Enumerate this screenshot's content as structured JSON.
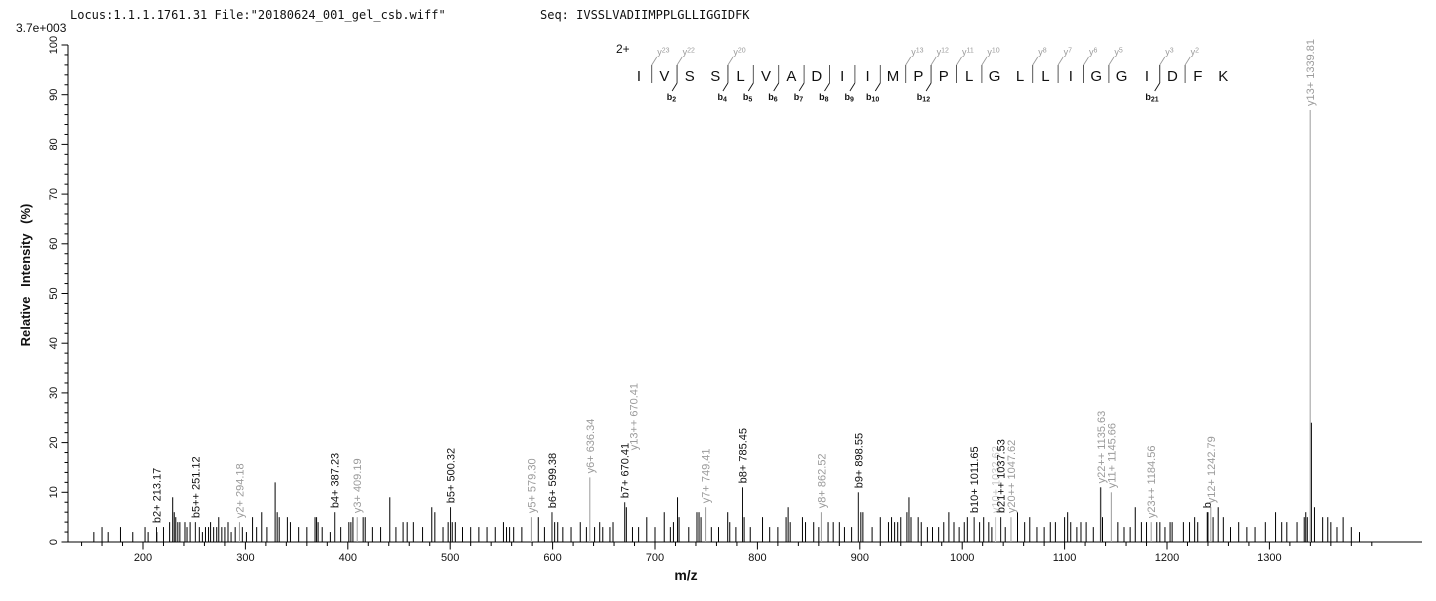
{
  "header": {
    "locus_file": "Locus:1.1.1.1761.31 File:\"20180624_001_gel_csb.wiff\"",
    "seq": "Seq: IVSSLVADIIMPPLGLLIGGIDFK"
  },
  "colors": {
    "axis": "#000000",
    "b_ion": "#111111",
    "y_ion": "#9b9b9b",
    "faint_label": "#c9c9c9",
    "noise_peak": "#000000",
    "sequence_divider": "#444444"
  },
  "chart_data": {
    "type": "bar",
    "subtype": "ms2_centroid_spectrum",
    "xlabel": "m/z",
    "ylabel": "Relative Intensity (%)",
    "intensity_scale_note": "3.7e+003",
    "xlim": [
      127,
      1449
    ],
    "ylim": [
      0,
      100
    ],
    "x_major_ticks": [
      200,
      300,
      400,
      500,
      600,
      700,
      800,
      900,
      1000,
      1100,
      1200,
      1300
    ],
    "x_minor_step": 20,
    "y_major_step": 10,
    "y_minor_step": 2,
    "grid": false,
    "precursor_charge": "2+",
    "peptide": "IVSSLVADIIMPPLGLLIGGIDFK",
    "sequence_ions": {
      "y": [
        {
          "name": "y",
          "num": "23",
          "after": 1
        },
        {
          "name": "y",
          "num": "22",
          "after": 2
        },
        {
          "name": "y",
          "num": "20",
          "after": 4
        },
        {
          "name": "y",
          "num": "13",
          "after": 11
        },
        {
          "name": "y",
          "num": "12",
          "after": 12
        },
        {
          "name": "y",
          "num": "11",
          "after": 13
        },
        {
          "name": "y",
          "num": "10",
          "after": 14
        },
        {
          "name": "y",
          "num": "8",
          "after": 16
        },
        {
          "name": "y",
          "num": "7",
          "after": 17
        },
        {
          "name": "y",
          "num": "6",
          "after": 18
        },
        {
          "name": "y",
          "num": "5",
          "after": 19
        },
        {
          "name": "y",
          "num": "3",
          "after": 21
        },
        {
          "name": "y",
          "num": "2",
          "after": 22
        }
      ],
      "b": [
        {
          "name": "b",
          "num": "2",
          "after": 2
        },
        {
          "name": "b",
          "num": "4",
          "after": 4
        },
        {
          "name": "b",
          "num": "5",
          "after": 5
        },
        {
          "name": "b",
          "num": "6",
          "after": 6
        },
        {
          "name": "b",
          "num": "7",
          "after": 7
        },
        {
          "name": "b",
          "num": "8",
          "after": 8
        },
        {
          "name": "b",
          "num": "9",
          "after": 9
        },
        {
          "name": "b",
          "num": "10",
          "after": 10
        },
        {
          "name": "b",
          "num": "12",
          "after": 12
        },
        {
          "name": "b",
          "num": "21",
          "after": 21
        }
      ]
    },
    "annotated_peaks": [
      {
        "mz": 213.17,
        "intensity_pct": 3,
        "label": "b2+ 213.17",
        "ion": "b"
      },
      {
        "mz": 251.12,
        "intensity_pct": 4,
        "label": "b5++ 251.12",
        "ion": "b"
      },
      {
        "mz": 294.18,
        "intensity_pct": 4,
        "label": "y2+ 294.18",
        "ion": "y"
      },
      {
        "mz": 387.23,
        "intensity_pct": 6,
        "label": "b4+ 387.23",
        "ion": "b"
      },
      {
        "mz": 409.19,
        "intensity_pct": 5,
        "label": "y3+ 409.19",
        "ion": "y"
      },
      {
        "mz": 500.32,
        "intensity_pct": 7,
        "label": "b5+ 500.32",
        "ion": "b"
      },
      {
        "mz": 579.3,
        "intensity_pct": 5,
        "label": "y5+ 579.30",
        "ion": "y"
      },
      {
        "mz": 599.38,
        "intensity_pct": 6,
        "label": "b6+ 599.38",
        "ion": "b"
      },
      {
        "mz": 636.34,
        "intensity_pct": 13,
        "label": "y6+ 636.34",
        "ion": "y"
      },
      {
        "mz": 670.41,
        "intensity_pct": 8,
        "label": "b7+ 670.41",
        "ion": "b"
      },
      {
        "mz": 670.41,
        "intensity_pct": 8,
        "label": "y13++ 670.41",
        "ion": "y",
        "dx": 9,
        "raise": 48,
        "no_line": true
      },
      {
        "mz": 749.41,
        "intensity_pct": 7,
        "label": "y7+ 749.41",
        "ion": "y"
      },
      {
        "mz": 785.45,
        "intensity_pct": 11,
        "label": "b8+ 785.45",
        "ion": "b"
      },
      {
        "mz": 862.52,
        "intensity_pct": 6,
        "label": "y8+ 862.52",
        "ion": "y"
      },
      {
        "mz": 898.55,
        "intensity_pct": 10,
        "label": "b9+ 898.55",
        "ion": "b"
      },
      {
        "mz": 1011.65,
        "intensity_pct": 5,
        "label": "b10+ 1011.65",
        "ion": "b"
      },
      {
        "mz": 1032.62,
        "intensity_pct": 5,
        "label": "y10+ 1032.62",
        "ion": "y",
        "faint": true
      },
      {
        "mz": 1037.53,
        "intensity_pct": 5,
        "label": "b21++ 1037.53",
        "ion": "b"
      },
      {
        "mz": 1047.62,
        "intensity_pct": 5,
        "label": "y20++ 1047.62",
        "ion": "y"
      },
      {
        "mz": 1135.63,
        "intensity_pct": 11,
        "label": "y22++ 1135.63",
        "ion": "y"
      },
      {
        "mz": 1145.66,
        "intensity_pct": 10,
        "label": "y11+ 1145.66",
        "ion": "y"
      },
      {
        "mz": 1184.56,
        "intensity_pct": 4,
        "label": "y23++ 1184.56",
        "ion": "y"
      },
      {
        "mz": 1239.3,
        "intensity_pct": 6,
        "label": "b",
        "ion": "b"
      },
      {
        "mz": 1242.79,
        "intensity_pct": 7,
        "label": "y12+ 1242.79",
        "ion": "y"
      },
      {
        "mz": 1339.81,
        "intensity_pct": 100,
        "label": "y13+ 1339.81",
        "ion": "y"
      }
    ],
    "unannotated_peaks": [
      [
        152,
        2
      ],
      [
        160,
        3
      ],
      [
        166,
        2
      ],
      [
        178,
        3
      ],
      [
        190,
        2
      ],
      [
        202,
        3
      ],
      [
        205,
        2
      ],
      [
        213.5,
        2
      ],
      [
        220,
        3
      ],
      [
        226,
        4
      ],
      [
        229,
        9
      ],
      [
        230.5,
        6
      ],
      [
        232,
        5
      ],
      [
        234,
        4
      ],
      [
        236,
        4
      ],
      [
        241,
        4
      ],
      [
        243,
        3
      ],
      [
        246,
        4
      ],
      [
        255,
        3
      ],
      [
        258,
        2
      ],
      [
        261,
        3
      ],
      [
        264,
        3
      ],
      [
        266,
        4
      ],
      [
        269,
        3
      ],
      [
        272,
        3
      ],
      [
        274,
        5
      ],
      [
        277,
        3
      ],
      [
        280,
        3
      ],
      [
        283,
        4
      ],
      [
        286,
        2
      ],
      [
        290,
        3
      ],
      [
        297,
        3
      ],
      [
        301,
        2
      ],
      [
        307,
        5
      ],
      [
        311,
        3
      ],
      [
        316,
        6
      ],
      [
        321,
        3
      ],
      [
        329,
        12
      ],
      [
        331,
        6
      ],
      [
        333,
        5
      ],
      [
        341,
        5
      ],
      [
        344,
        4
      ],
      [
        352,
        3
      ],
      [
        360,
        3
      ],
      [
        368,
        5
      ],
      [
        369.5,
        5
      ],
      [
        371,
        4
      ],
      [
        375,
        3
      ],
      [
        383,
        2
      ],
      [
        393,
        3
      ],
      [
        401,
        4
      ],
      [
        403,
        4
      ],
      [
        405,
        5
      ],
      [
        415,
        5
      ],
      [
        417,
        5
      ],
      [
        424,
        3
      ],
      [
        432,
        3
      ],
      [
        441,
        9
      ],
      [
        447,
        3
      ],
      [
        454,
        4
      ],
      [
        458,
        4
      ],
      [
        464,
        4
      ],
      [
        473,
        3
      ],
      [
        482,
        7
      ],
      [
        485,
        6
      ],
      [
        493,
        3
      ],
      [
        498,
        4
      ],
      [
        502,
        4
      ],
      [
        505,
        4
      ],
      [
        512,
        3
      ],
      [
        520,
        3
      ],
      [
        528,
        3
      ],
      [
        536,
        3
      ],
      [
        544,
        3
      ],
      [
        552,
        4
      ],
      [
        555,
        3
      ],
      [
        558,
        3
      ],
      [
        562,
        3
      ],
      [
        570,
        3
      ],
      [
        586,
        5
      ],
      [
        592,
        3
      ],
      [
        602,
        4
      ],
      [
        605,
        4
      ],
      [
        610,
        3
      ],
      [
        618,
        3
      ],
      [
        627,
        4
      ],
      [
        633,
        3
      ],
      [
        641,
        3
      ],
      [
        646,
        4
      ],
      [
        649,
        3
      ],
      [
        656,
        3
      ],
      [
        659,
        4
      ],
      [
        672,
        7
      ],
      [
        678,
        3
      ],
      [
        684,
        3
      ],
      [
        692,
        5
      ],
      [
        700,
        3
      ],
      [
        709,
        6
      ],
      [
        715,
        3
      ],
      [
        718,
        4
      ],
      [
        722,
        9
      ],
      [
        723.5,
        5
      ],
      [
        733,
        3
      ],
      [
        741,
        6
      ],
      [
        743,
        6
      ],
      [
        745,
        5
      ],
      [
        755,
        3
      ],
      [
        762,
        3
      ],
      [
        771,
        6
      ],
      [
        773,
        4
      ],
      [
        779,
        3
      ],
      [
        787,
        5
      ],
      [
        793,
        3
      ],
      [
        805,
        5
      ],
      [
        812,
        3
      ],
      [
        820,
        3
      ],
      [
        828,
        5
      ],
      [
        830,
        7
      ],
      [
        832,
        4
      ],
      [
        844,
        5
      ],
      [
        847,
        4
      ],
      [
        855,
        4
      ],
      [
        860,
        3
      ],
      [
        869,
        4
      ],
      [
        874,
        4
      ],
      [
        880,
        4
      ],
      [
        885,
        3
      ],
      [
        892,
        3
      ],
      [
        901,
        6
      ],
      [
        903,
        6
      ],
      [
        912,
        3
      ],
      [
        920,
        5
      ],
      [
        928,
        4
      ],
      [
        931,
        5
      ],
      [
        934,
        4
      ],
      [
        937,
        4
      ],
      [
        940,
        5
      ],
      [
        946,
        6
      ],
      [
        948,
        9
      ],
      [
        950,
        5
      ],
      [
        957,
        5
      ],
      [
        960,
        4
      ],
      [
        966,
        3
      ],
      [
        971,
        3
      ],
      [
        977,
        3
      ],
      [
        982,
        4
      ],
      [
        987,
        6
      ],
      [
        992,
        4
      ],
      [
        997,
        3
      ],
      [
        1002,
        4
      ],
      [
        1005,
        5
      ],
      [
        1017,
        4
      ],
      [
        1021,
        5
      ],
      [
        1026,
        4
      ],
      [
        1029,
        3
      ],
      [
        1042,
        3
      ],
      [
        1054,
        6
      ],
      [
        1061,
        4
      ],
      [
        1066,
        5
      ],
      [
        1073,
        3
      ],
      [
        1080,
        3
      ],
      [
        1086,
        4
      ],
      [
        1091,
        4
      ],
      [
        1100,
        5
      ],
      [
        1103,
        6
      ],
      [
        1106,
        4
      ],
      [
        1112,
        3
      ],
      [
        1116,
        4
      ],
      [
        1121,
        4
      ],
      [
        1128,
        3
      ],
      [
        1135,
        11
      ],
      [
        1137,
        5
      ],
      [
        1152,
        4
      ],
      [
        1158,
        3
      ],
      [
        1164,
        3
      ],
      [
        1169,
        7
      ],
      [
        1175,
        4
      ],
      [
        1180,
        4
      ],
      [
        1190,
        4
      ],
      [
        1193,
        4
      ],
      [
        1198,
        3
      ],
      [
        1203,
        4
      ],
      [
        1205,
        4
      ],
      [
        1216,
        4
      ],
      [
        1222,
        4
      ],
      [
        1227,
        5
      ],
      [
        1230,
        4
      ],
      [
        1240,
        6
      ],
      [
        1245,
        5
      ],
      [
        1250,
        7
      ],
      [
        1255,
        5
      ],
      [
        1262,
        3
      ],
      [
        1270,
        4
      ],
      [
        1278,
        3
      ],
      [
        1286,
        3
      ],
      [
        1296,
        4
      ],
      [
        1306,
        6
      ],
      [
        1312,
        4
      ],
      [
        1317,
        4
      ],
      [
        1327,
        4
      ],
      [
        1334,
        5
      ],
      [
        1335.5,
        6
      ],
      [
        1337,
        5
      ],
      [
        1341,
        24
      ],
      [
        1344,
        7
      ],
      [
        1352,
        5
      ],
      [
        1357,
        5
      ],
      [
        1360,
        4
      ],
      [
        1366,
        3
      ],
      [
        1372,
        5
      ],
      [
        1380,
        3
      ],
      [
        1388,
        2
      ]
    ]
  }
}
